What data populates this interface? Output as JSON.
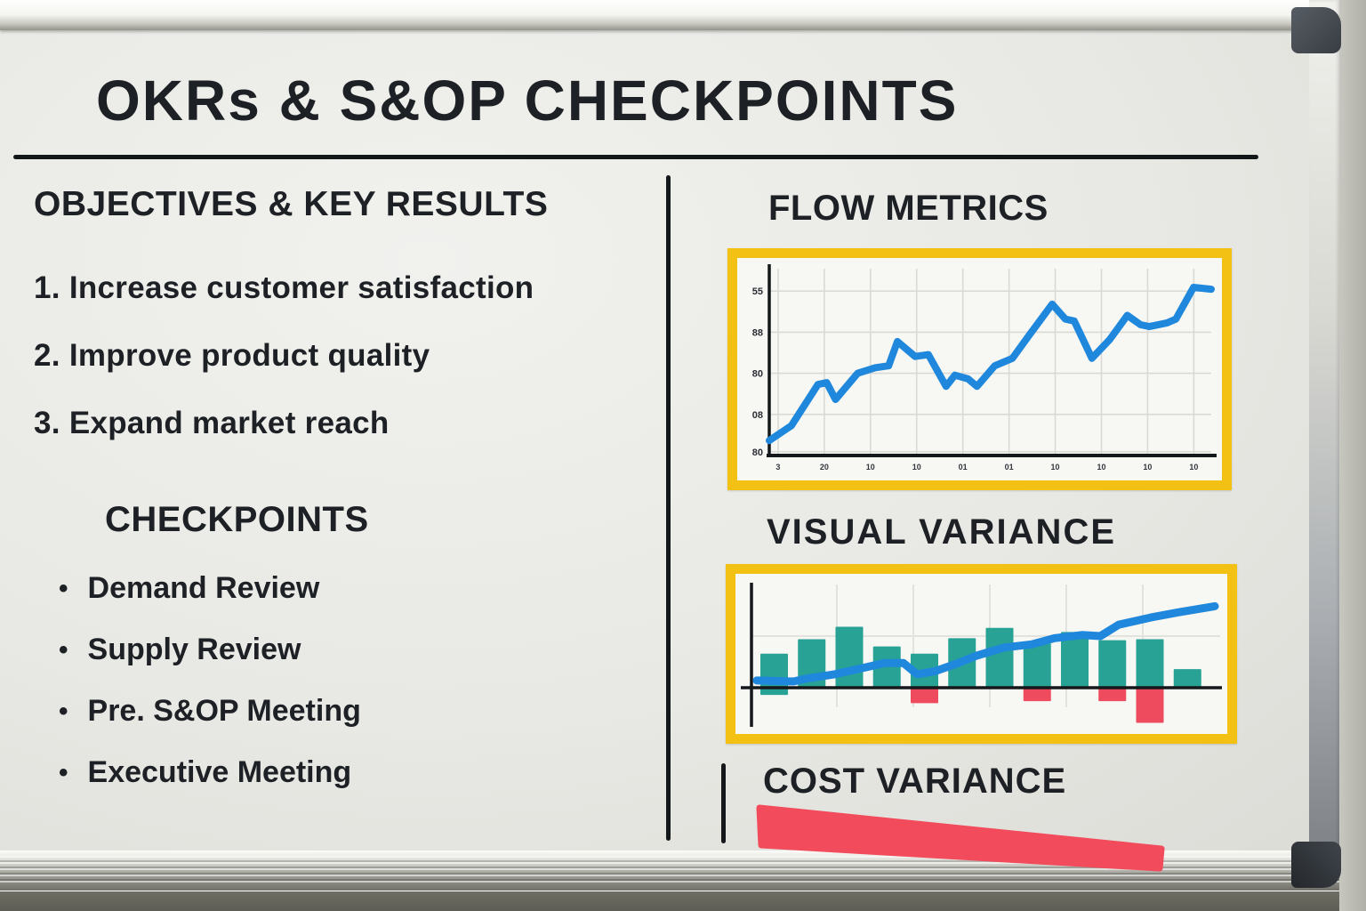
{
  "board": {
    "title": "OKRs & S&OP CHECKPOINTS",
    "left_column": {
      "okr_heading": "OBJECTIVES & KEY RESULTS",
      "objectives": [
        "1. Increase customer satisfaction",
        "2. Improve product quality",
        "3. Expand market reach"
      ],
      "checkpoints_heading": "CHECKPOINTS",
      "checkpoints": [
        "Demand Review",
        "Supply Review",
        "Pre. S&OP Meeting",
        "Executive Meeting"
      ],
      "bullet_glyph": "•"
    },
    "right_column": {
      "flow_heading": "FLOW METRICS",
      "variance_heading": "VISUAL VARIANCE",
      "cost_heading": "COST VARIANCE"
    }
  },
  "colors": {
    "marker_black": "#1d2125",
    "line_blue": "#1f88dc",
    "bar_teal": "#27a295",
    "bar_red": "#ee4b5e",
    "box_yellow": "#f2c114",
    "cost_red": "#f24b5b",
    "grid_gray": "#dadad5"
  },
  "chart_data": [
    {
      "name": "flow-metrics",
      "type": "line",
      "title": "FLOW METRICS",
      "y_tick_labels": [
        "55",
        "88",
        "80",
        "08",
        "80"
      ],
      "x_tick_labels": [
        "3",
        "20",
        "10",
        "10",
        "01",
        "01",
        "10",
        "10",
        "10",
        "10"
      ],
      "ylim": [
        0,
        100
      ],
      "grid": true,
      "legend": "none",
      "points": [
        [
          0,
          8
        ],
        [
          5,
          16
        ],
        [
          11,
          38
        ],
        [
          13,
          39
        ],
        [
          15,
          30
        ],
        [
          20,
          44
        ],
        [
          24,
          47
        ],
        [
          27,
          48
        ],
        [
          29,
          61
        ],
        [
          33,
          53
        ],
        [
          36,
          54
        ],
        [
          40,
          37
        ],
        [
          42,
          43
        ],
        [
          45,
          41
        ],
        [
          47,
          37
        ],
        [
          51,
          48
        ],
        [
          55,
          52
        ],
        [
          59,
          65
        ],
        [
          64,
          81
        ],
        [
          67,
          73
        ],
        [
          69,
          72
        ],
        [
          73,
          52
        ],
        [
          77,
          62
        ],
        [
          81,
          75
        ],
        [
          84,
          70
        ],
        [
          86,
          69
        ],
        [
          90,
          71
        ],
        [
          92,
          73
        ],
        [
          96,
          90
        ],
        [
          100,
          89
        ]
      ]
    },
    {
      "name": "visual-variance",
      "type": "bar+line",
      "title": "VISUAL VARIANCE",
      "ylim": [
        -40,
        100
      ],
      "grid": true,
      "bars": [
        {
          "above": 33,
          "below": 7,
          "below_color": "teal"
        },
        {
          "above": 47,
          "below": 0,
          "below_color": "none"
        },
        {
          "above": 59,
          "below": 0,
          "below_color": "none"
        },
        {
          "above": 40,
          "below": 0,
          "below_color": "none"
        },
        {
          "above": 33,
          "below": 15,
          "below_color": "red"
        },
        {
          "above": 48,
          "below": 0,
          "below_color": "none"
        },
        {
          "above": 58,
          "below": 0,
          "below_color": "none"
        },
        {
          "above": 43,
          "below": 13,
          "below_color": "red"
        },
        {
          "above": 54,
          "below": 0,
          "below_color": "none"
        },
        {
          "above": 46,
          "below": 13,
          "below_color": "red"
        },
        {
          "above": 47,
          "below": 34,
          "below_color": "red"
        },
        {
          "above": 18,
          "below": 0,
          "below_color": "none"
        }
      ],
      "line_points": [
        [
          0,
          7
        ],
        [
          8,
          6
        ],
        [
          11,
          9
        ],
        [
          17,
          13
        ],
        [
          23,
          19
        ],
        [
          28,
          24
        ],
        [
          32,
          24
        ],
        [
          35,
          13
        ],
        [
          39,
          16
        ],
        [
          44,
          24
        ],
        [
          48,
          31
        ],
        [
          54,
          39
        ],
        [
          60,
          42
        ],
        [
          65,
          48
        ],
        [
          71,
          51
        ],
        [
          75,
          50
        ],
        [
          79,
          61
        ],
        [
          86,
          68
        ],
        [
          92,
          73
        ],
        [
          100,
          79
        ]
      ]
    },
    {
      "name": "cost-variance",
      "type": "trend",
      "title": "COST VARIANCE",
      "trend": "declining",
      "description": "thick red marker stroke sloping gently downward, thick at left and tapering to the right",
      "x": [
        0,
        100
      ],
      "values": [
        100,
        20
      ]
    }
  ]
}
